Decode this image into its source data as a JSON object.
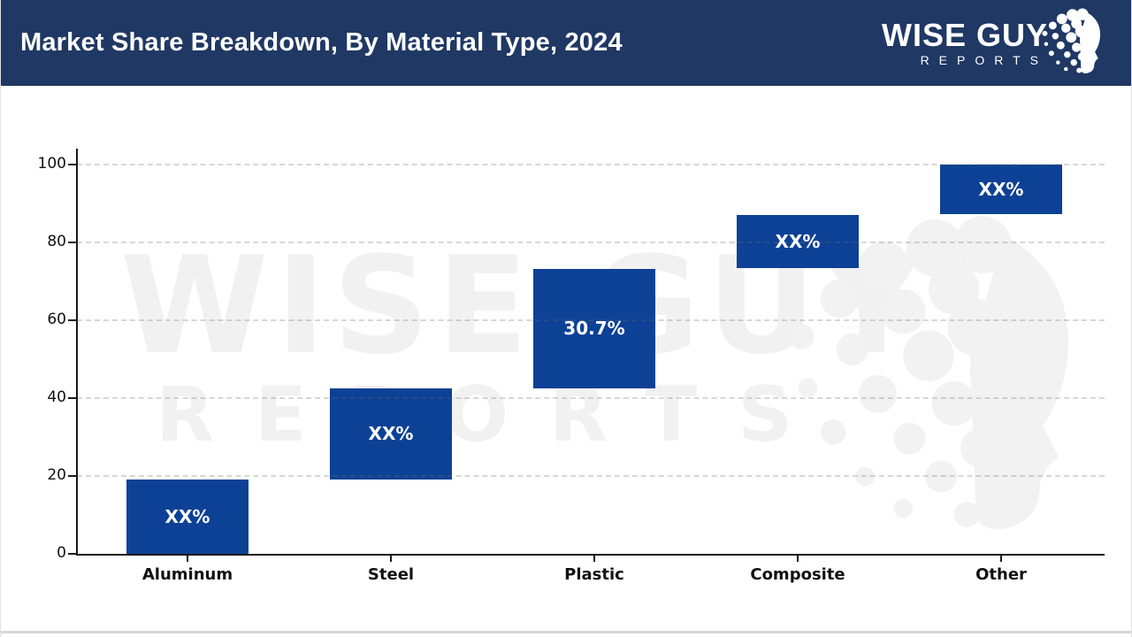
{
  "header": {
    "title": "Market Share Breakdown, By Material Type, 2024",
    "logo": {
      "line1": "WISE GUY",
      "line2": "REPORTS"
    }
  },
  "watermark": {
    "line1": "WISE GUY",
    "line2": "REPORTS"
  },
  "chart_data": {
    "type": "bar",
    "subtype": "waterfall",
    "title": "Market Share Breakdown, By Material Type, 2024",
    "categories": [
      "Aluminum",
      "Steel",
      "Plastic",
      "Composite",
      "Other"
    ],
    "bars": [
      {
        "category": "Aluminum",
        "label": "XX%",
        "start": 0,
        "end": 19
      },
      {
        "category": "Steel",
        "label": "XX%",
        "start": 19,
        "end": 42.6
      },
      {
        "category": "Plastic",
        "label": "30.7%",
        "start": 42.5,
        "end": 73.2
      },
      {
        "category": "Composite",
        "label": "XX%",
        "start": 73.5,
        "end": 87
      },
      {
        "category": "Other",
        "label": "XX%",
        "start": 87.2,
        "end": 100
      }
    ],
    "xlabel": "",
    "ylabel": "",
    "yticks": [
      0,
      20,
      40,
      60,
      80,
      100
    ],
    "ylim": [
      0,
      104
    ],
    "grid": "horizontal-dashed",
    "legend": "none",
    "bar_color": "#0d4196",
    "axis_color": "#1a1a1a",
    "grid_color": "rgba(110,110,110,0.28)"
  },
  "colors": {
    "header_bg": "#1f3864",
    "page_bg": "#ffffff",
    "title_text": "#ffffff",
    "watermark": "#f1f1f1",
    "footer_line": "#d8d8d8"
  }
}
